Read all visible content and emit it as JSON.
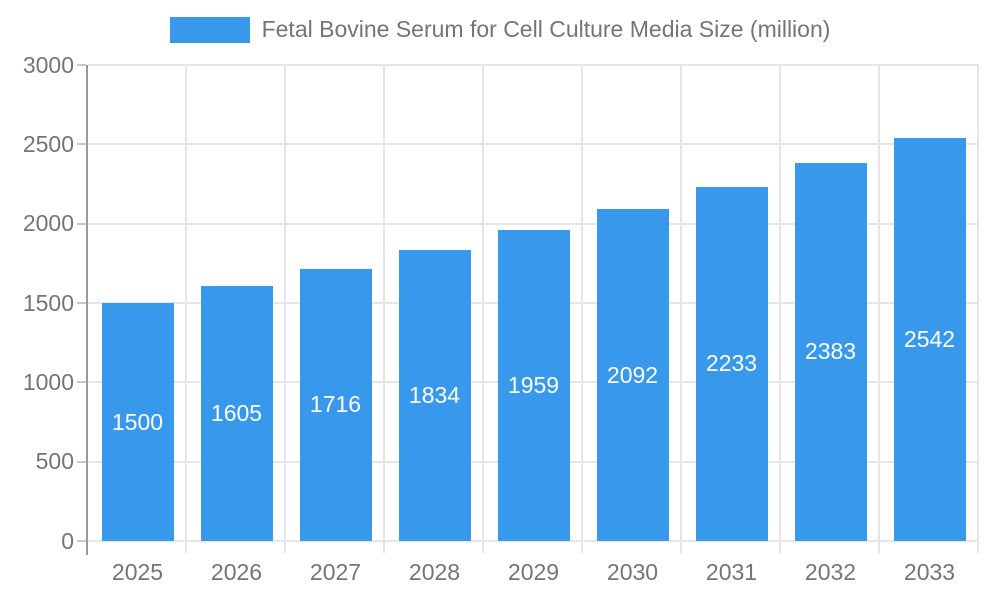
{
  "chart_data": {
    "type": "bar",
    "title": "Fetal Bovine Serum for Cell Culture Media Size (million)",
    "categories": [
      "2025",
      "2026",
      "2027",
      "2028",
      "2029",
      "2030",
      "2031",
      "2032",
      "2033"
    ],
    "values": [
      1500,
      1605,
      1716,
      1834,
      1959,
      2092,
      2233,
      2383,
      2542
    ],
    "xlabel": "",
    "ylabel": "",
    "ylim": [
      0,
      3000
    ],
    "ytick_step": 500,
    "ytick_labels": [
      "0",
      "500",
      "1000",
      "1500",
      "2000",
      "2500",
      "3000"
    ],
    "grid": true,
    "legend_position": "top",
    "value_labels": "inside-center",
    "colors": {
      "bar": "#3898EC",
      "value_label": "#FFFFFF",
      "axis_text": "#757575",
      "gridline": "#E6E6E6",
      "axis_line": "#999999"
    }
  }
}
